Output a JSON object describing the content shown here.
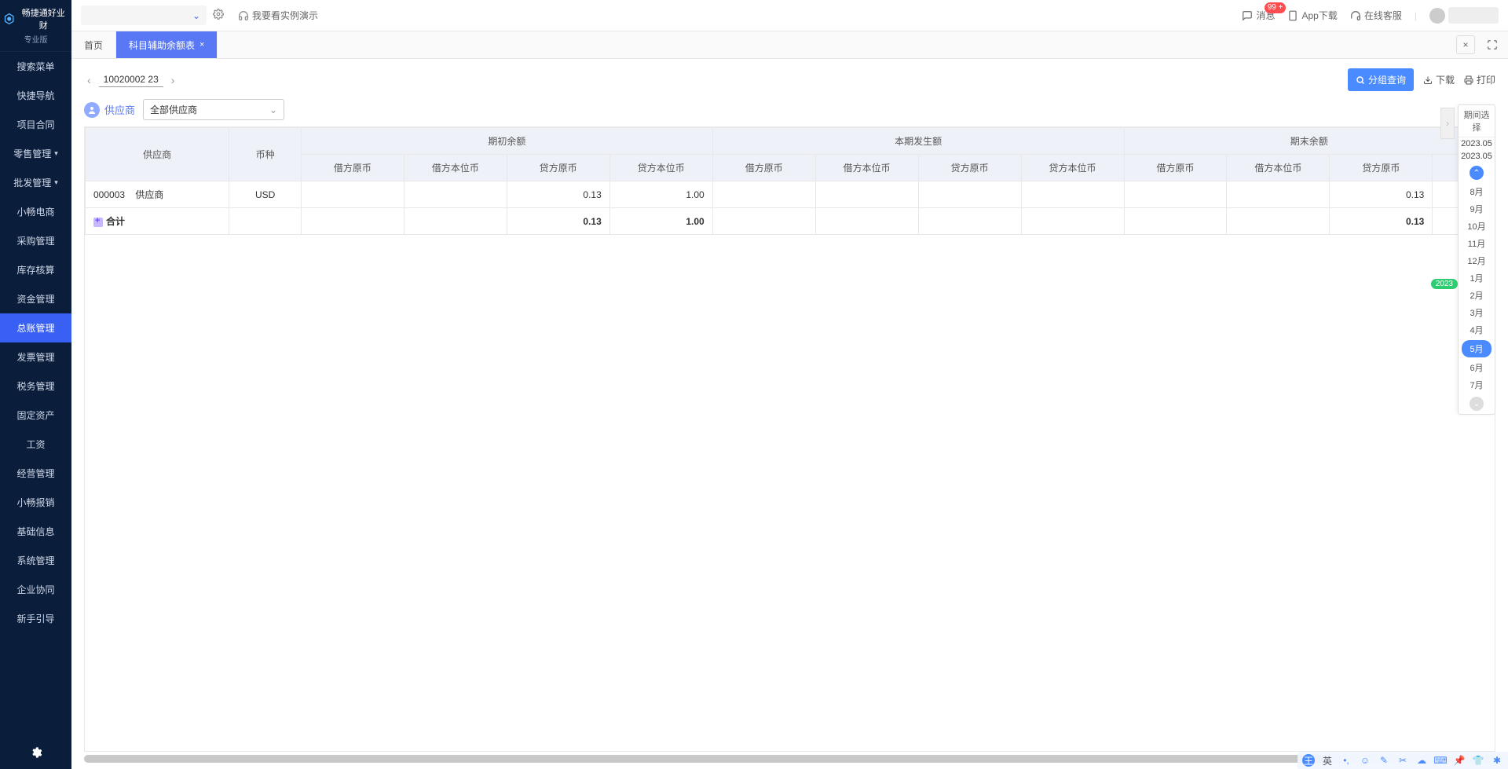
{
  "brand": {
    "name": "畅捷通好业财",
    "edition": "专业版"
  },
  "sidebar": {
    "items": [
      {
        "label": "搜索菜单",
        "expandable": false
      },
      {
        "label": "快捷导航",
        "expandable": false
      },
      {
        "label": "项目合同",
        "expandable": false
      },
      {
        "label": "零售管理",
        "expandable": true
      },
      {
        "label": "批发管理",
        "expandable": true
      },
      {
        "label": "小畅电商",
        "expandable": false
      },
      {
        "label": "采购管理",
        "expandable": false
      },
      {
        "label": "库存核算",
        "expandable": false
      },
      {
        "label": "资金管理",
        "expandable": false
      },
      {
        "label": "总账管理",
        "expandable": false,
        "active": true
      },
      {
        "label": "发票管理",
        "expandable": false
      },
      {
        "label": "税务管理",
        "expandable": false
      },
      {
        "label": "固定资产",
        "expandable": false
      },
      {
        "label": "工资",
        "expandable": false
      },
      {
        "label": "经营管理",
        "expandable": false
      },
      {
        "label": "小畅报销",
        "expandable": false
      },
      {
        "label": "基础信息",
        "expandable": false
      },
      {
        "label": "系统管理",
        "expandable": false
      },
      {
        "label": "企业协同",
        "expandable": false
      },
      {
        "label": "新手引导",
        "expandable": false
      }
    ]
  },
  "topbar": {
    "org_placeholder": "　　　　　　",
    "demo_label": "我要看实例演示",
    "message_label": "消息",
    "message_badge": "99 +",
    "download_label": "App下载",
    "support_label": "在线客服",
    "user_name": "　　　　"
  },
  "tabs": {
    "home": "首页",
    "active": "科目辅助余额表"
  },
  "toolbar": {
    "code": "10020002  23",
    "group_query": "分组查询",
    "download": "下载",
    "print": "打印"
  },
  "filter": {
    "supplier_label": "供应商",
    "select_value": "全部供应商"
  },
  "table": {
    "headers": {
      "supplier": "供应商",
      "currency": "币种",
      "opening": "期初余额",
      "current": "本期发生额",
      "closing": "期末余额",
      "debit_orig": "借方原币",
      "debit_base": "借方本位币",
      "credit_orig": "贷方原币",
      "credit_base": "贷方本位币"
    },
    "row": {
      "code": "000003",
      "name": "供应商",
      "currency": "USD",
      "open_credit_orig": "0.13",
      "open_credit_base": "1.00",
      "close_credit_orig": "0.13"
    },
    "total": {
      "label": "合计",
      "open_credit_orig": "0.13",
      "open_credit_base": "1.00",
      "close_credit_orig": "0.13"
    }
  },
  "period": {
    "title": "期间选择",
    "from": "2023.05",
    "to": "2023.05",
    "year_marker": "2023",
    "months": [
      "8月",
      "9月",
      "10月",
      "11月",
      "12月",
      "1月",
      "2月",
      "3月",
      "4月",
      "5月",
      "6月",
      "7月"
    ],
    "active_month": "5月"
  },
  "ime_label": "英"
}
